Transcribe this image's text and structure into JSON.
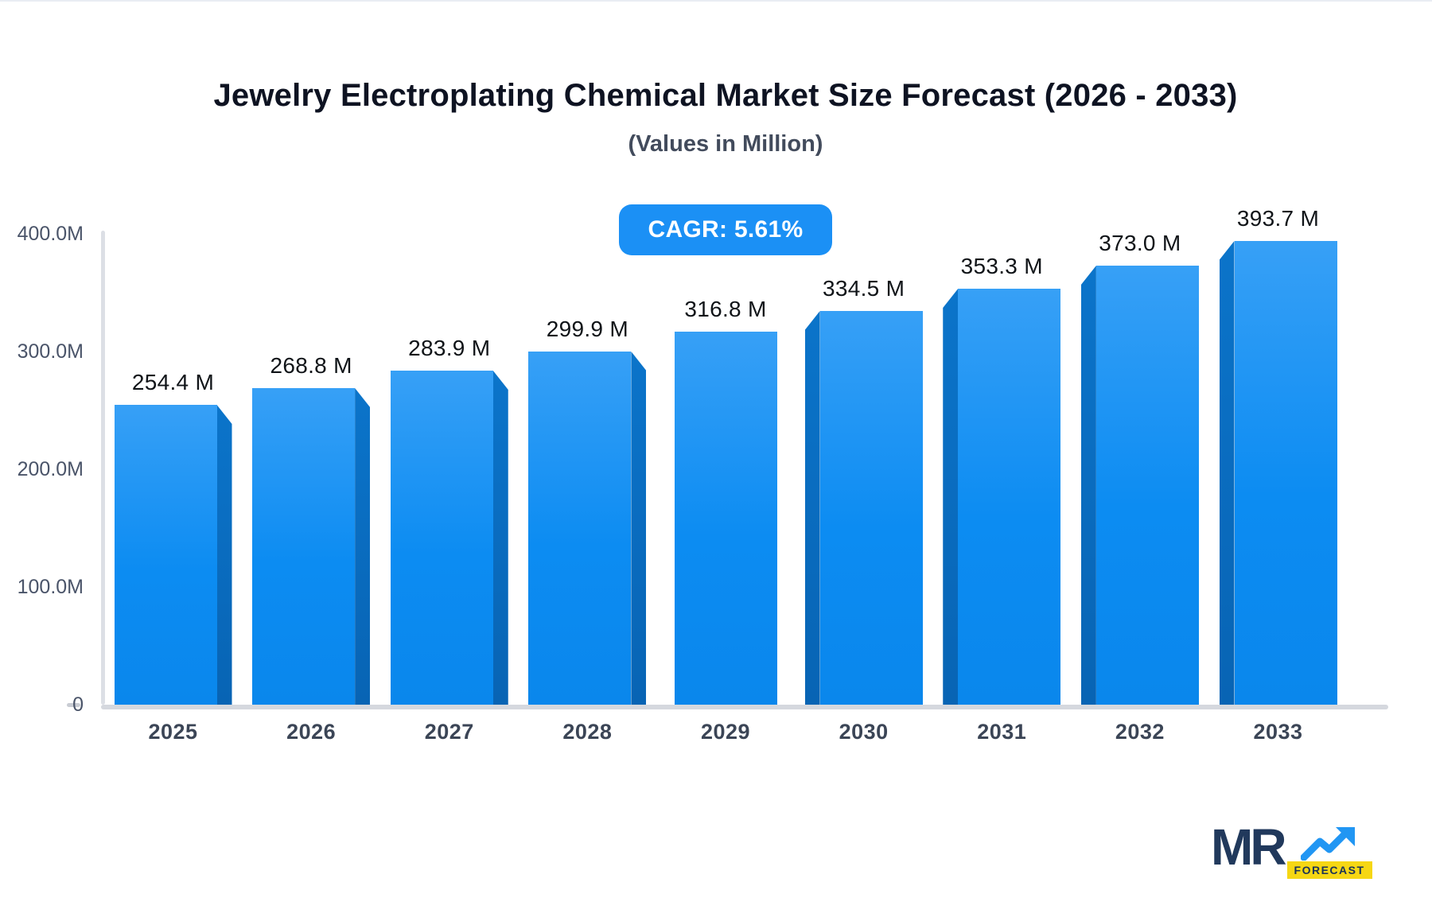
{
  "header": {
    "title": "Jewelry Electroplating Chemical Market Size Forecast (2026 - 2033)",
    "subtitle": "(Values in Million)",
    "cagr_badge": "CAGR: 5.61%"
  },
  "chart_data": {
    "type": "bar",
    "title": "Jewelry Electroplating Chemical Market Size Forecast (2026 - 2033)",
    "subtitle": "(Values in Million)",
    "xlabel": "",
    "ylabel": "",
    "ylim": [
      0,
      400
    ],
    "grid": false,
    "legend": false,
    "categories": [
      "2025",
      "2026",
      "2027",
      "2028",
      "2029",
      "2030",
      "2031",
      "2032",
      "2033"
    ],
    "values": [
      254.4,
      268.8,
      283.9,
      299.9,
      316.8,
      334.5,
      353.3,
      373.0,
      393.7
    ],
    "bar_labels": [
      "254.4 M",
      "268.8 M",
      "283.9 M",
      "299.9 M",
      "316.8 M",
      "334.5 M",
      "353.3 M",
      "373.0 M",
      "393.7 M"
    ],
    "y_ticks": [
      "400.0M",
      "300.0M",
      "200.0M",
      "100.0M",
      "0"
    ],
    "cagr": "5.61%"
  },
  "logo": {
    "mr": "MR",
    "forecast": "FORECAST",
    "arrow_icon": "trend-up-arrow-icon"
  },
  "colors": {
    "bar_face": "#0c8cf2",
    "bar_face_light": "#37a0f6",
    "bar_side_3d": "#0a70c6",
    "badge_bg": "#1b90f5",
    "badge_text": "#ffffff",
    "axis_line": "#dcdfe5",
    "baseline": "#d5d8de",
    "y_tick_text": "#4a5469",
    "x_tick_text": "#3b4556",
    "title_text": "#0e1322",
    "subtitle_text": "#424b5c",
    "value_label_text": "#101418",
    "logo_navy": "#21395c",
    "logo_yellow": "#f6d714",
    "logo_arrow_blue": "#2196f3"
  }
}
